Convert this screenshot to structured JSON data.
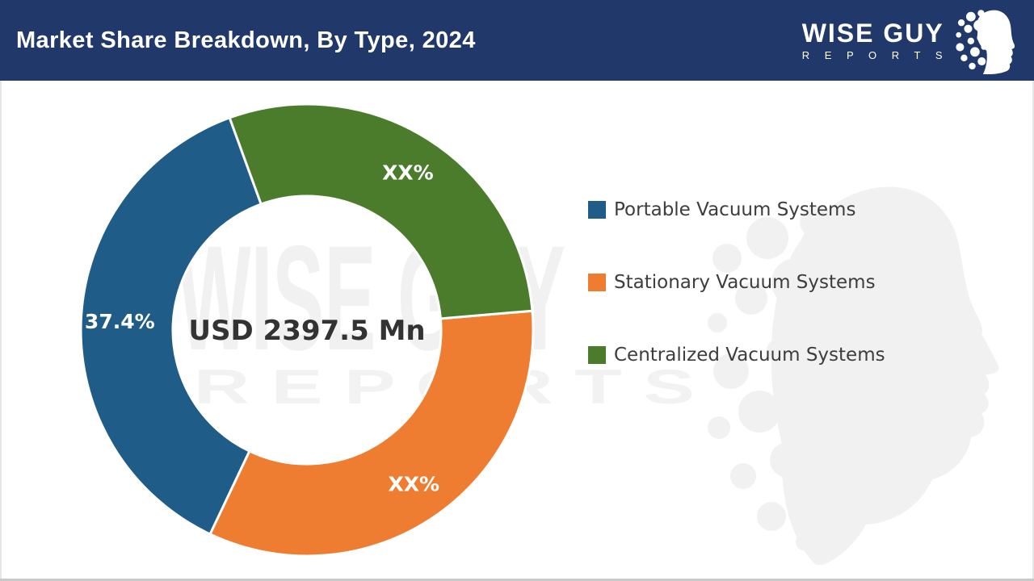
{
  "header": {
    "title": "Market Share Breakdown, By Type, 2024",
    "bg_color": "#21386B",
    "logo": {
      "line1": "WISE GUY",
      "line2": "R E P O R T S"
    }
  },
  "watermark": {
    "line1": "WISE GUY",
    "line2": "R E P O R T S"
  },
  "chart_data": {
    "type": "pie",
    "subtype": "donut",
    "title": "Market Share Breakdown, By Type, 2024",
    "center_label": "USD 2397.5 Mn",
    "start_angle_deg": 110,
    "direction": "counterclockwise",
    "legend_position": "right",
    "grid": false,
    "segments": [
      {
        "name": "Portable Vacuum Systems",
        "label": "37.4%",
        "value_pct": 37.4,
        "value_masked": false,
        "color": "#1F5C87"
      },
      {
        "name": "Stationary Vacuum Systems",
        "label": "XX%",
        "value_pct": 33.4,
        "value_masked": true,
        "color": "#EE7D31"
      },
      {
        "name": "Centralized Vacuum Systems",
        "label": "XX%",
        "value_pct": 29.2,
        "value_masked": true,
        "color": "#4A7C2B"
      }
    ]
  }
}
